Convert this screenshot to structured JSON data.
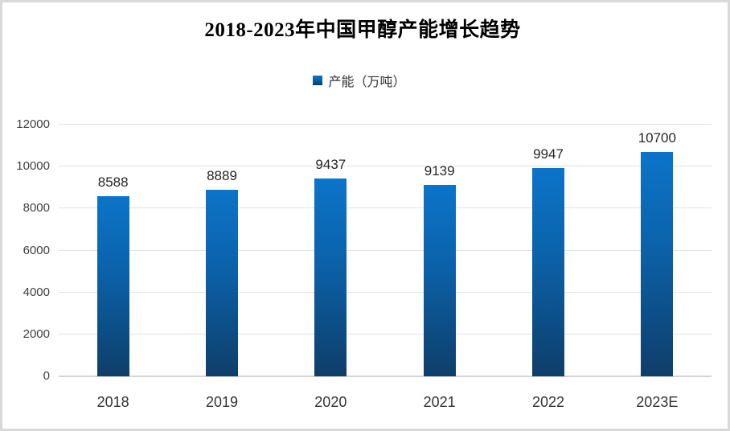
{
  "chart_data": {
    "type": "bar",
    "title": "2018-2023年中国甲醇产能增长趋势",
    "series_name": "产能（万吨）",
    "legend_entries": [
      "产能（万吨）"
    ],
    "legend_position": "top",
    "categories": [
      "2018",
      "2019",
      "2020",
      "2021",
      "2022",
      "2023E"
    ],
    "values": [
      8588,
      8889,
      9437,
      9139,
      9947,
      10700
    ],
    "data_labels": [
      8588,
      8889,
      9437,
      9139,
      9947,
      10700
    ],
    "xlabel": "",
    "ylabel": "",
    "ylim": [
      0,
      12000
    ],
    "yticks": [
      0,
      2000,
      4000,
      6000,
      8000,
      10000,
      12000
    ],
    "grid": true
  },
  "colors": {
    "bar_gradient_top": "#0C74C9",
    "bar_gradient_mid": "#0B63AC",
    "bar_gradient_bottom": "#0E3E6A",
    "gridline": "#e2e2e2",
    "axis_line": "#d4d4d4",
    "frame_border": "#d9d9d9",
    "title_text": "#000000",
    "tick_text": "#404040",
    "data_label_text": "#262626"
  }
}
